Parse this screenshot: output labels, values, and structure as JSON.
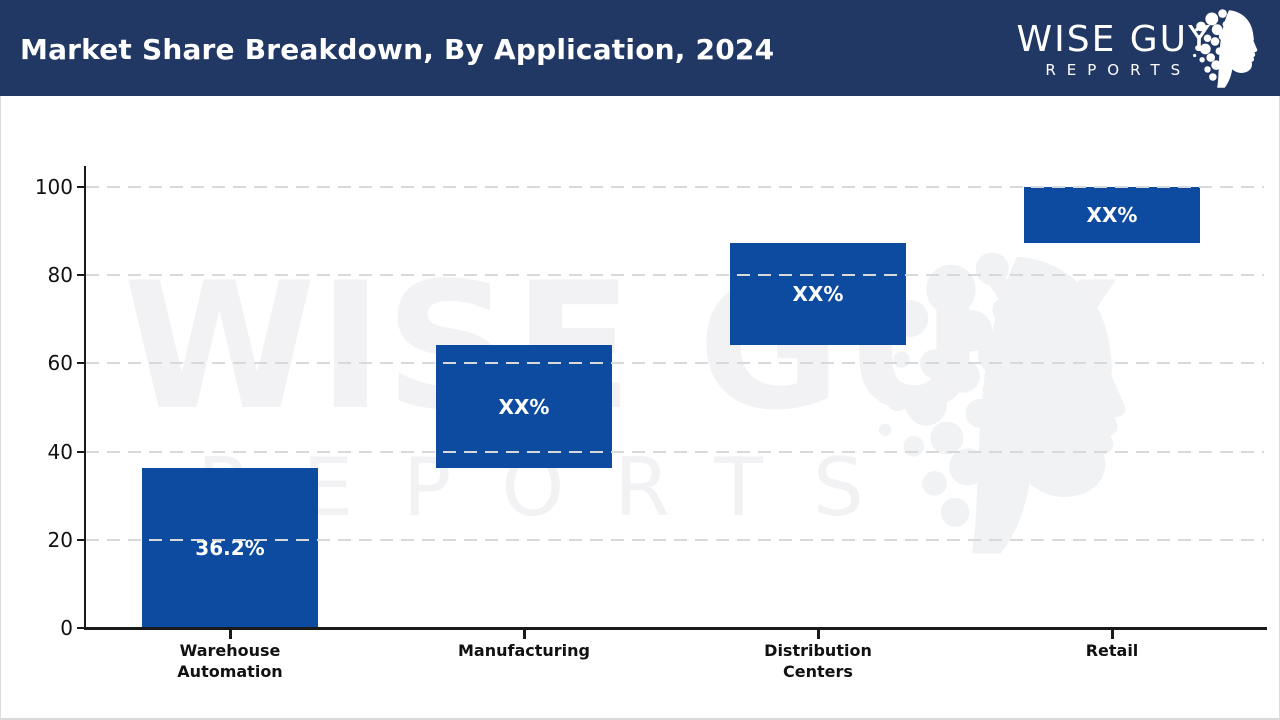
{
  "header": {
    "title": "Market Share Breakdown, By Application, 2024",
    "logo": {
      "line1": "WISE GUY",
      "line2": "REPORTS"
    }
  },
  "watermark": {
    "line1": "WISE GUY",
    "line2": "REPORTS"
  },
  "colors": {
    "header_bg": "#213864",
    "bar_fill": "#0d4ba0",
    "bar_label_text": "#ffffff",
    "gridline": "#d7d9db",
    "axis": "#1a1a1a",
    "tick_text": "#111111",
    "watermark": "#f2f2f4",
    "title_text": "#ffffff"
  },
  "chart_data": {
    "type": "bar",
    "subtype": "waterfall",
    "title": "Market Share Breakdown, By Application, 2024",
    "xlabel": "",
    "ylabel": "",
    "ylim": [
      0,
      100
    ],
    "yticks": [
      0,
      20,
      40,
      60,
      80,
      100
    ],
    "grid": "horizontal-dashed",
    "legend": "none",
    "categories": [
      "Warehouse Automation",
      "Manufacturing",
      "Distribution Centers",
      "Retail"
    ],
    "segments": [
      {
        "category": "Warehouse Automation",
        "start": 0,
        "end": 36.2,
        "label": "36.2%"
      },
      {
        "category": "Manufacturing",
        "start": 36.2,
        "end": 64.2,
        "label": "XX%"
      },
      {
        "category": "Distribution Centers",
        "start": 64.2,
        "end": 87.4,
        "label": "XX%"
      },
      {
        "category": "Retail",
        "start": 87.4,
        "end": 100,
        "label": "XX%"
      }
    ]
  }
}
